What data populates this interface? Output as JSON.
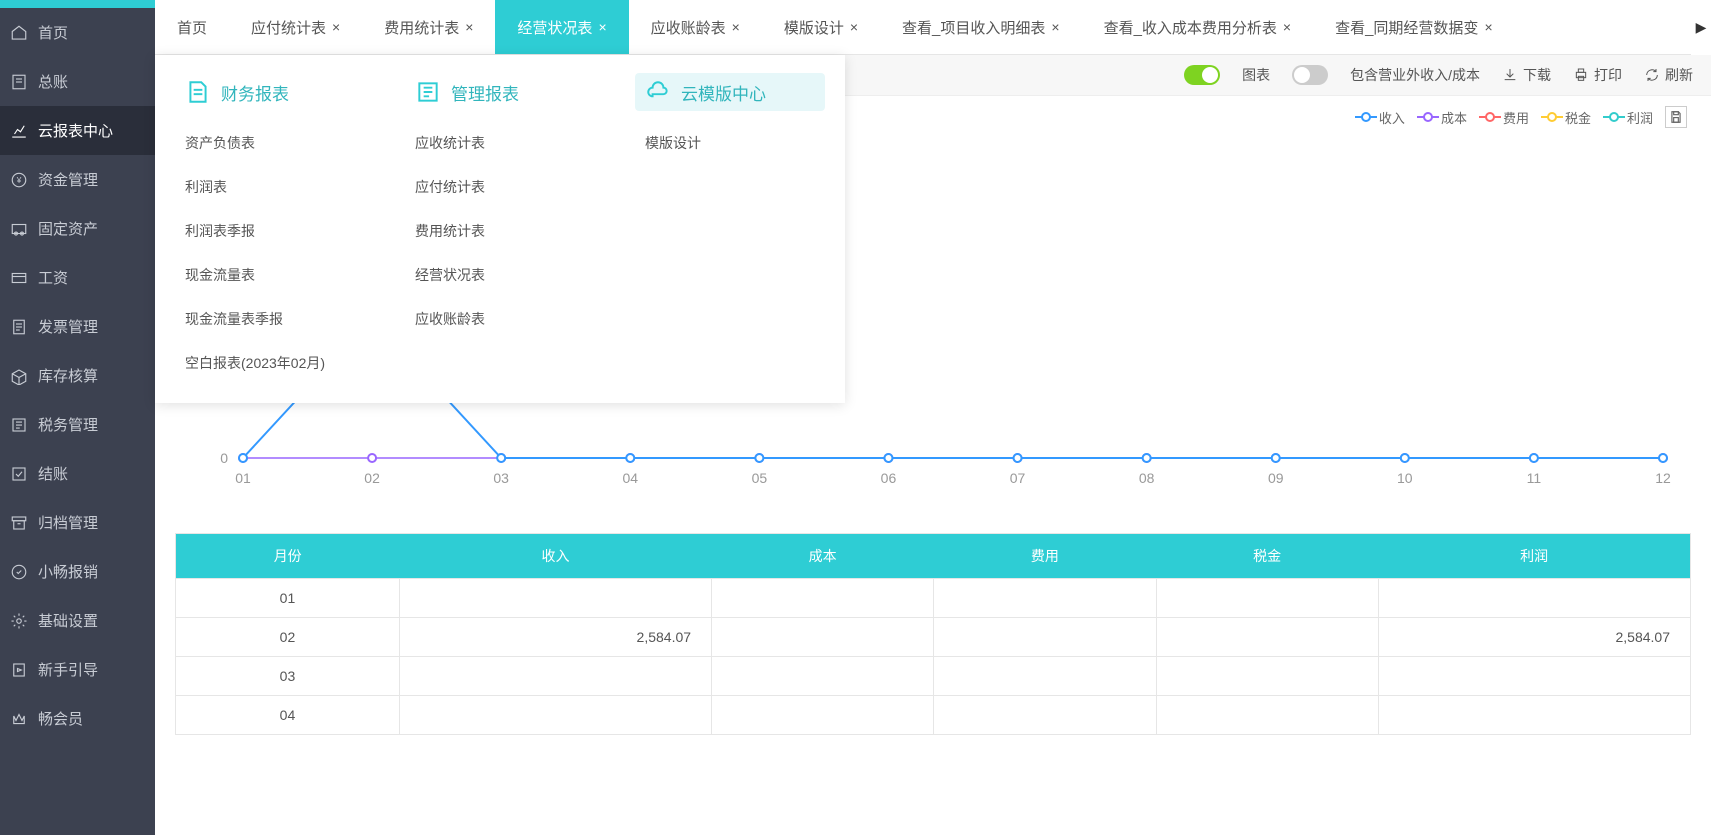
{
  "sidebar": {
    "items": [
      {
        "label": "首页",
        "icon": "home"
      },
      {
        "label": "总账",
        "icon": "ledger"
      },
      {
        "label": "云报表中心",
        "icon": "chart",
        "active": true
      },
      {
        "label": "资金管理",
        "icon": "money"
      },
      {
        "label": "固定资产",
        "icon": "asset"
      },
      {
        "label": "工资",
        "icon": "salary"
      },
      {
        "label": "发票管理",
        "icon": "invoice"
      },
      {
        "label": "库存核算",
        "icon": "stock"
      },
      {
        "label": "税务管理",
        "icon": "tax"
      },
      {
        "label": "结账",
        "icon": "close"
      },
      {
        "label": "归档管理",
        "icon": "archive"
      },
      {
        "label": "小畅报销",
        "icon": "expense"
      },
      {
        "label": "基础设置",
        "icon": "settings"
      },
      {
        "label": "新手引导",
        "icon": "guide"
      },
      {
        "label": "畅会员",
        "icon": "vip"
      }
    ]
  },
  "tabs": [
    {
      "label": "首页",
      "closable": false
    },
    {
      "label": "应付统计表",
      "closable": true
    },
    {
      "label": "费用统计表",
      "closable": true
    },
    {
      "label": "经营状况表",
      "closable": true,
      "active": true
    },
    {
      "label": "应收账龄表",
      "closable": true
    },
    {
      "label": "模版设计",
      "closable": true
    },
    {
      "label": "查看_项目收入明细表",
      "closable": true
    },
    {
      "label": "查看_收入成本费用分析表",
      "closable": true
    },
    {
      "label": "查看_同期经营数据变",
      "closable": true
    }
  ],
  "toolbar": {
    "chart_toggle": {
      "label": "图表",
      "on": true
    },
    "include_toggle": {
      "label": "包含营业外收入/成本",
      "on": false
    },
    "download": "下载",
    "print": "打印",
    "refresh": "刷新"
  },
  "dropdown": {
    "columns": [
      {
        "title": "财务报表",
        "icon": "report",
        "items": [
          "资产负债表",
          "利润表",
          "利润表季报",
          "现金流量表",
          "现金流量表季报",
          "空白报表(2023年02月)"
        ]
      },
      {
        "title": "管理报表",
        "icon": "mgmt",
        "items": [
          "应收统计表",
          "应付统计表",
          "费用统计表",
          "经营状况表",
          "应收账龄表"
        ]
      },
      {
        "title": "云模版中心",
        "icon": "cloud",
        "highlight": true,
        "items": [
          "模版设计"
        ]
      }
    ]
  },
  "chart": {
    "y_zero": "0",
    "x_labels": [
      "01",
      "02",
      "03",
      "04",
      "05",
      "06",
      "07",
      "08",
      "09",
      "10",
      "11",
      "12"
    ],
    "legend": [
      {
        "label": "收入",
        "color": "#3399ff"
      },
      {
        "label": "成本",
        "color": "#9966ff"
      },
      {
        "label": "费用",
        "color": "#ff6666"
      },
      {
        "label": "税金",
        "color": "#ffcc33"
      },
      {
        "label": "利润",
        "color": "#33cccc"
      }
    ],
    "series_income": {
      "color": "#3399ff",
      "values": [
        0,
        2584.07,
        0,
        0,
        0,
        0,
        0,
        0,
        0,
        0,
        0,
        0
      ]
    },
    "baseline_color": "#9966ff"
  },
  "table": {
    "columns": [
      "月份",
      "收入",
      "成本",
      "费用",
      "税金",
      "利润"
    ],
    "rows": [
      {
        "month": "01",
        "income": "",
        "cost": "",
        "expense": "",
        "tax": "",
        "profit": ""
      },
      {
        "month": "02",
        "income": "2,584.07",
        "cost": "",
        "expense": "",
        "tax": "",
        "profit": "2,584.07"
      },
      {
        "month": "03",
        "income": "",
        "cost": "",
        "expense": "",
        "tax": "",
        "profit": ""
      },
      {
        "month": "04",
        "income": "",
        "cost": "",
        "expense": "",
        "tax": "",
        "profit": ""
      }
    ]
  }
}
